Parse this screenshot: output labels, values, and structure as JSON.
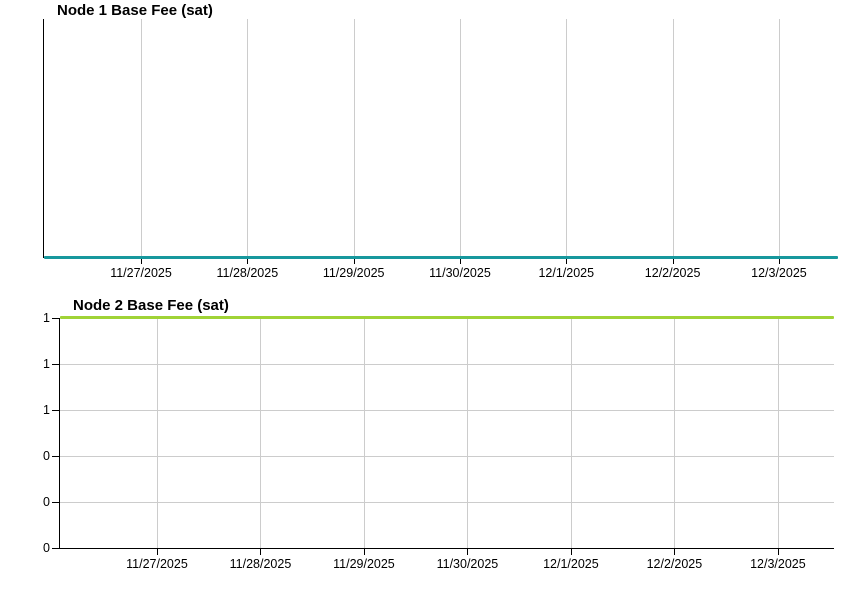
{
  "page": {
    "background": "#ffffff",
    "text_color": "#000000",
    "grid_color": "#cccccc",
    "axis_color": "#000000"
  },
  "chart_data": [
    {
      "type": "line",
      "title": "Node 1 Base Fee (sat)",
      "x": [
        "11/27/2025",
        "11/28/2025",
        "11/29/2025",
        "11/30/2025",
        "12/1/2025",
        "12/2/2025",
        "12/3/2025"
      ],
      "series": [
        {
          "name": "Node 1 Base Fee",
          "values": [
            0,
            0,
            0,
            0,
            0,
            0,
            0
          ],
          "color": "#17989d"
        }
      ],
      "y_tick_labels": [],
      "xlabel": "",
      "ylabel": "",
      "grid": "vertical-only",
      "line_position": "bottom",
      "legend": "none"
    },
    {
      "type": "line",
      "title": "Node 2 Base Fee (sat)",
      "x": [
        "11/27/2025",
        "11/28/2025",
        "11/29/2025",
        "11/30/2025",
        "12/1/2025",
        "12/2/2025",
        "12/3/2025"
      ],
      "series": [
        {
          "name": "Node 2 Base Fee",
          "values": [
            1,
            1,
            1,
            1,
            1,
            1,
            1
          ],
          "color": "#a0d336"
        }
      ],
      "ylim": [
        0,
        1
      ],
      "y_ticks": [
        1,
        0.8,
        0.6,
        0.4,
        0.2,
        0
      ],
      "y_tick_labels": [
        "1",
        "1",
        "1",
        "0",
        "0",
        "0"
      ],
      "xlabel": "",
      "ylabel": "",
      "grid": "full",
      "line_position": "top",
      "legend": "none"
    }
  ]
}
